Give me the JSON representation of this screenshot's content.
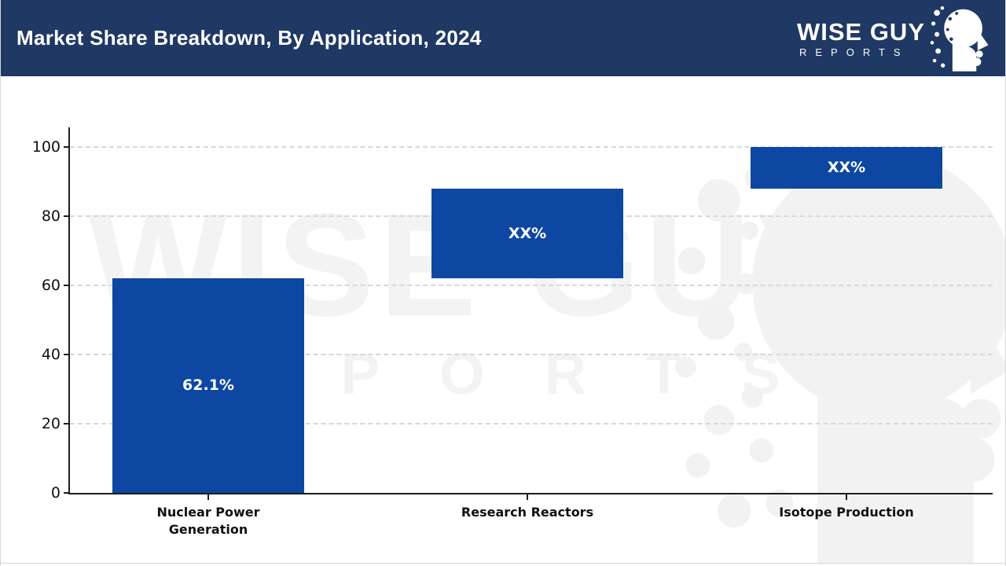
{
  "header": {
    "title": "Market Share Breakdown, By Application, 2024",
    "logo": {
      "wordmark": "WISE GUY",
      "subtext": "REPORTS"
    }
  },
  "watermark": {
    "wordmark": "WISE GUY",
    "subtext": "REPORTS"
  },
  "chart_data": {
    "type": "bar",
    "subtype": "waterfall-cumulative-percentage",
    "title": "Market Share Breakdown, By Application, 2024",
    "categories": [
      "Nuclear Power Generation",
      "Research Reactors",
      "Isotope Production"
    ],
    "bars": [
      {
        "category": "Nuclear Power Generation",
        "label": "62.1%",
        "base": 0,
        "top": 62.1
      },
      {
        "category": "Research Reactors",
        "label": "XX%",
        "base": 62.1,
        "top": 88
      },
      {
        "category": "Isotope Production",
        "label": "XX%",
        "base": 88,
        "top": 100
      }
    ],
    "ylim": [
      0,
      100
    ],
    "yticks": [
      0,
      20,
      40,
      60,
      80,
      100
    ],
    "xlabel": "",
    "ylabel": "",
    "grid": "horizontal-dashed",
    "legend": "none",
    "colors": {
      "bar": "#0d47a1",
      "bar_label": "#ffffff",
      "axis": "#1d1d1d",
      "gridline": "#d8d8d8",
      "header_bg": "#1f3864",
      "header_text": "#ffffff",
      "watermark": "#f2f2f2"
    }
  }
}
